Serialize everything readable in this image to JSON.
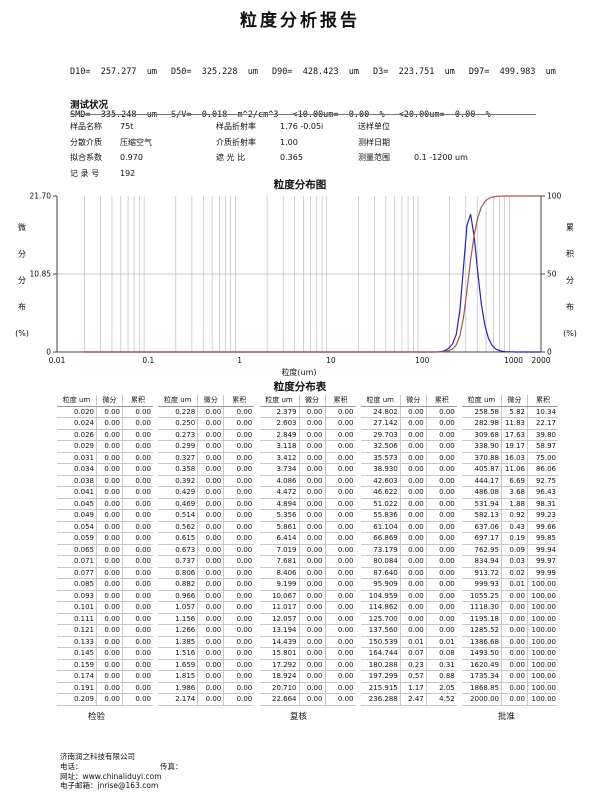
{
  "title": "粒度分析报告",
  "summary": {
    "line1": [
      {
        "label": "D10=",
        "value": "257.277",
        "unit": "um"
      },
      {
        "label": "D50=",
        "value": "325.228",
        "unit": "um"
      },
      {
        "label": "D90=",
        "value": "428.423",
        "unit": "um"
      },
      {
        "label": "D3=",
        "value": "223.751",
        "unit": "um"
      },
      {
        "label": "D97=",
        "value": "499.983",
        "unit": "um"
      }
    ],
    "line2": [
      {
        "label": "SMD=",
        "value": "335.248",
        "unit": "um"
      },
      {
        "label": "S/V=",
        "value": "0.018",
        "unit": "m^2/cm^3"
      },
      {
        "label": "<10.00um=",
        "value": "0.00",
        "unit": "%"
      },
      {
        "label": "<20.00um=",
        "value": "0.00",
        "unit": "%"
      }
    ]
  },
  "test_conditions": {
    "heading": "测试状况",
    "columns": [
      {
        "fields": [
          {
            "label": "样品名称",
            "value": "75t"
          },
          {
            "label": "分散介质",
            "value": "压缩空气"
          },
          {
            "label": "拟合系数",
            "value": "0.970"
          },
          {
            "label": "记 录 号",
            "value": "192"
          }
        ]
      },
      {
        "fields": [
          {
            "label": "样品折射率",
            "value": "1.76 -0.05i"
          },
          {
            "label": "介质折射率",
            "value": "1.00"
          },
          {
            "label": "遮 光 比",
            "value": "0.365"
          }
        ]
      },
      {
        "fields": [
          {
            "label": "送样单位",
            "value": ""
          },
          {
            "label": "测样日期",
            "value": ""
          },
          {
            "label": "测量范围",
            "value": "0.1 -1200 um"
          }
        ]
      }
    ]
  },
  "chart": {
    "title": "粒度分布图",
    "x_label": "粒度(um)",
    "x_ticks": [
      "0.01",
      "0.1",
      "1",
      "10",
      "100",
      "1000",
      "2000"
    ],
    "y_left_ticks": [
      "21.70",
      "10.85",
      "0"
    ],
    "y_right_ticks": [
      "100",
      "50",
      "0"
    ],
    "y_left_label_chars": [
      "微",
      "分",
      "分",
      "布",
      "(%)"
    ],
    "y_right_label_chars": [
      "累",
      "积",
      "分",
      "布",
      "(%)"
    ]
  },
  "chart_data": {
    "type": "line",
    "title": "粒度分布图",
    "x_scale": "log",
    "xlim": [
      0.01,
      2000
    ],
    "xlabel": "粒度(um)",
    "ylabel_left": "微分分布(%)",
    "ylabel_right": "累积分布(%)",
    "ylim_left": [
      0,
      21.7
    ],
    "ylim_right": [
      0,
      100
    ],
    "grid_min": 0.02,
    "grid_color": "#b4b4b4",
    "axis_color": "#444444",
    "x": [
      0.02,
      0.024,
      0.026,
      0.029,
      0.031,
      0.034,
      0.038,
      0.041,
      0.045,
      0.049,
      0.054,
      0.059,
      0.065,
      0.071,
      0.077,
      0.085,
      0.093,
      0.101,
      0.111,
      0.121,
      0.133,
      0.145,
      0.159,
      0.174,
      0.191,
      0.209,
      0.228,
      0.25,
      0.273,
      0.299,
      0.327,
      0.358,
      0.392,
      0.429,
      0.469,
      0.514,
      0.562,
      0.615,
      0.673,
      0.737,
      0.806,
      0.882,
      0.966,
      1.057,
      1.156,
      1.266,
      1.385,
      1.516,
      1.659,
      1.815,
      1.986,
      2.174,
      2.379,
      2.603,
      2.849,
      3.118,
      3.412,
      3.734,
      4.086,
      4.472,
      4.894,
      5.356,
      5.861,
      6.414,
      7.019,
      7.681,
      8.406,
      9.199,
      10.067,
      11.017,
      12.057,
      13.194,
      14.439,
      15.801,
      17.292,
      18.924,
      20.71,
      22.664,
      24.802,
      27.142,
      29.703,
      32.506,
      35.573,
      38.93,
      42.603,
      46.622,
      51.022,
      55.836,
      61.104,
      66.869,
      73.179,
      80.084,
      87.64,
      95.909,
      104.959,
      114.862,
      125.7,
      137.56,
      150.539,
      164.744,
      180.288,
      197.299,
      215.915,
      236.288,
      258.58,
      282.98,
      309.68,
      338.9,
      370.88,
      405.87,
      444.17,
      486.08,
      531.94,
      582.13,
      637.06,
      697.17,
      762.95,
      834.94,
      913.72,
      999.93,
      1055.25,
      1118.3,
      1195.18,
      1285.52,
      1386.68,
      1493.5,
      1620.49,
      1735.34,
      1868.85,
      2000.0
    ],
    "series": [
      {
        "name": "微分分布",
        "axis": "left",
        "color": "#2525a8",
        "ymax": 21.7,
        "values": [
          0,
          0,
          0,
          0,
          0,
          0,
          0,
          0,
          0,
          0,
          0,
          0,
          0,
          0,
          0,
          0,
          0,
          0,
          0,
          0,
          0,
          0,
          0,
          0,
          0,
          0,
          0,
          0,
          0,
          0,
          0,
          0,
          0,
          0,
          0,
          0,
          0,
          0,
          0,
          0,
          0,
          0,
          0,
          0,
          0,
          0,
          0,
          0,
          0,
          0,
          0,
          0,
          0,
          0,
          0,
          0,
          0,
          0,
          0,
          0,
          0,
          0,
          0,
          0,
          0,
          0,
          0,
          0,
          0,
          0,
          0,
          0,
          0,
          0,
          0,
          0,
          0,
          0,
          0,
          0,
          0,
          0,
          0,
          0,
          0,
          0,
          0,
          0,
          0,
          0,
          0,
          0,
          0,
          0,
          0,
          0,
          0,
          0,
          0.01,
          0.07,
          0.23,
          0.57,
          1.17,
          2.47,
          5.82,
          11.83,
          17.63,
          19.17,
          16.03,
          11.06,
          6.69,
          3.68,
          1.88,
          0.92,
          0.43,
          0.19,
          0.09,
          0.03,
          0.02,
          0.01,
          0,
          0,
          0,
          0,
          0,
          0,
          0,
          0,
          0,
          0
        ]
      },
      {
        "name": "累积分布",
        "axis": "right",
        "color": "#a3564a",
        "ymax": 100,
        "values": [
          0,
          0,
          0,
          0,
          0,
          0,
          0,
          0,
          0,
          0,
          0,
          0,
          0,
          0,
          0,
          0,
          0,
          0,
          0,
          0,
          0,
          0,
          0,
          0,
          0,
          0,
          0,
          0,
          0,
          0,
          0,
          0,
          0,
          0,
          0,
          0,
          0,
          0,
          0,
          0,
          0,
          0,
          0,
          0,
          0,
          0,
          0,
          0,
          0,
          0,
          0,
          0,
          0,
          0,
          0,
          0,
          0,
          0,
          0,
          0,
          0,
          0,
          0,
          0,
          0,
          0,
          0,
          0,
          0,
          0,
          0,
          0,
          0,
          0,
          0,
          0,
          0,
          0,
          0,
          0,
          0,
          0,
          0,
          0,
          0,
          0,
          0,
          0,
          0,
          0,
          0,
          0,
          0,
          0,
          0,
          0,
          0,
          0,
          0.01,
          0.08,
          0.31,
          0.88,
          2.05,
          4.52,
          10.34,
          22.17,
          39.8,
          58.97,
          75.0,
          86.06,
          92.75,
          96.43,
          98.31,
          99.23,
          99.66,
          99.85,
          99.94,
          99.97,
          99.99,
          100,
          100,
          100,
          100,
          100,
          100,
          100,
          100,
          100,
          100,
          100
        ]
      }
    ]
  },
  "table": {
    "title": "粒度分布表",
    "headers": [
      "粒度 um",
      "微分",
      "累积"
    ],
    "groups": 5,
    "rows_per_group": 26,
    "size_decimal_switch_index": 104
  },
  "signoff": {
    "inspect": "检验",
    "review": "复核",
    "approve": "批准"
  },
  "footer": {
    "company": "济南润之科技有限公司",
    "phone_label": "电话：",
    "fax_label": "传真：",
    "website_label": "网址：",
    "website": "www.chinaliduyi.com",
    "email_label": "电子邮箱：",
    "email": "jnrise@163.com"
  }
}
